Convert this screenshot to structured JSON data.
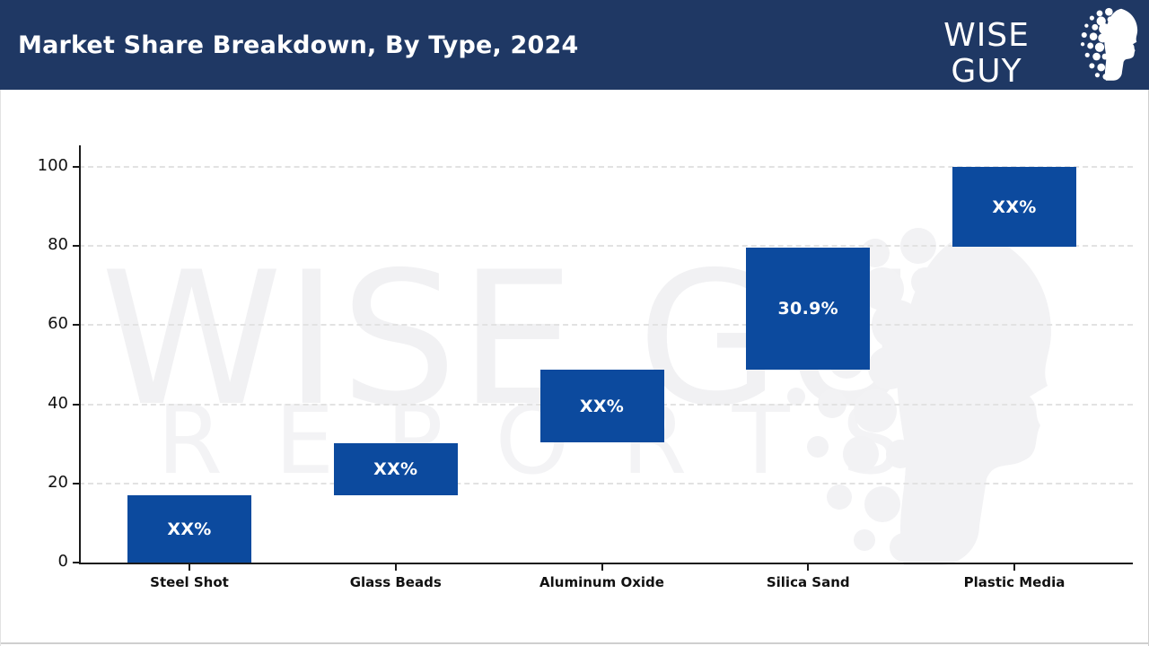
{
  "header": {
    "title": "Market Share Breakdown, By Type, 2024",
    "logo": {
      "line1": "WISE GUY",
      "line2": "REPORTS"
    }
  },
  "watermark": {
    "line1": "WISE GUY",
    "line2": "REPORTS"
  },
  "colors": {
    "header_bg": "#1f3864",
    "bar": "#0c4a9e",
    "grid": "#e2e2e2",
    "axis": "#1a1a1a",
    "bar_label": "#ffffff",
    "watermark": "#f1f1f3"
  },
  "chart_data": {
    "type": "bar",
    "subtype": "floating-waterfall",
    "title": "Market Share Breakdown, By Type, 2024",
    "xlabel": "",
    "ylabel": "",
    "categories": [
      "Steel Shot",
      "Glass Beads",
      "Aluminum Oxide",
      "Silica Sand",
      "Plastic Media"
    ],
    "segments": [
      {
        "category": "Steel Shot",
        "start": 0,
        "end": 17.0,
        "label": "XX%"
      },
      {
        "category": "Glass Beads",
        "start": 17.0,
        "end": 30.2,
        "label": "XX%"
      },
      {
        "category": "Aluminum Oxide",
        "start": 30.3,
        "end": 48.7,
        "label": "XX%"
      },
      {
        "category": "Silica Sand",
        "start": 48.7,
        "end": 79.6,
        "label": "30.9%"
      },
      {
        "category": "Plastic Media",
        "start": 79.8,
        "end": 100,
        "label": "XX%"
      }
    ],
    "yticks": [
      0,
      20,
      40,
      60,
      80,
      100
    ],
    "ylim": [
      0,
      105
    ],
    "grid": "dashed-horizontal-at-yticks",
    "legend": "none"
  }
}
